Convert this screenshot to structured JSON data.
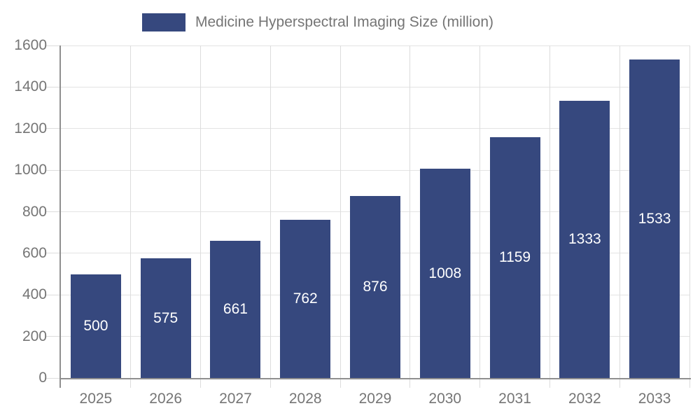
{
  "chart_data": {
    "type": "bar",
    "title": "Medicine Hyperspectral Imaging Size (million)",
    "categories": [
      "2025",
      "2026",
      "2027",
      "2028",
      "2029",
      "2030",
      "2031",
      "2032",
      "2033"
    ],
    "values": [
      500,
      575,
      661,
      762,
      876,
      1008,
      1159,
      1333,
      1533
    ],
    "xlabel": "",
    "ylabel": "",
    "ylim": [
      0,
      1600
    ],
    "yticks": [
      0,
      200,
      400,
      600,
      800,
      1000,
      1200,
      1400,
      1600
    ],
    "grid": true,
    "legend_position": "top",
    "legend_entries": [
      "Medicine Hyperspectral Imaging Size (million)"
    ],
    "colors": {
      "bar": "#36487E",
      "bar_value_label": "#ffffff",
      "axis_text": "#757575",
      "legend_text": "#757575",
      "y_gridline": "#e3e3e3",
      "x_gridline": "#dcdcdc",
      "tick_mark": "#dcdcdc",
      "axis_line": "#8f8f8f",
      "background": "#ffffff"
    }
  }
}
